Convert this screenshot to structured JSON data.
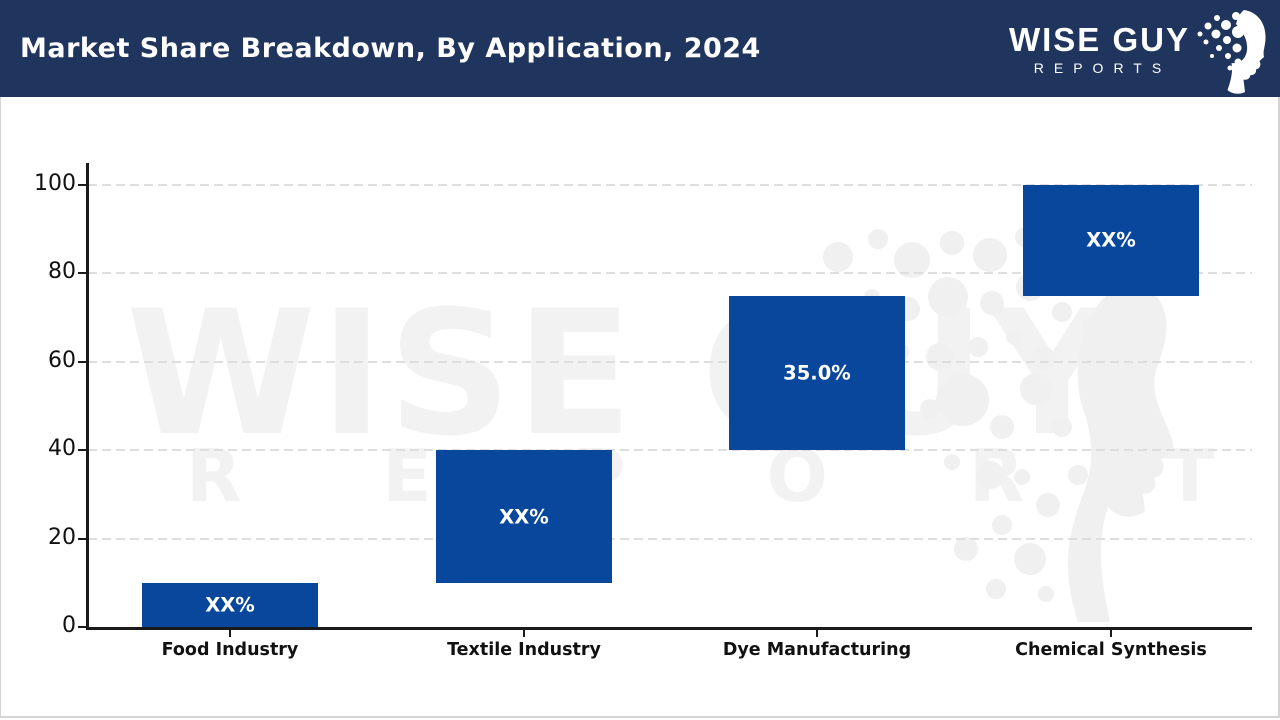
{
  "header": {
    "title": "Market Share Breakdown, By Application, 2024",
    "bg_color": "#1F355E",
    "logo": {
      "line1": "WISE GUY",
      "line2": "REPORTS",
      "head_icon": "dotted-head-profile"
    }
  },
  "watermark": {
    "line1": "WISE GUY",
    "line2": "R E P O R T S"
  },
  "chart_data": {
    "type": "bar",
    "subtype": "floating-segment-bars (stacked waterfall, segments sum to 100%)",
    "title": "Market Share Breakdown, By Application, 2024",
    "categories": [
      "Food Industry",
      "Textile Industry",
      "Dye Manufacturing",
      "Chemical Synthesis"
    ],
    "series": [
      {
        "category": "Food Industry",
        "start": 0,
        "end": 10,
        "span": 10,
        "label": "XX%"
      },
      {
        "category": "Textile Industry",
        "start": 10,
        "end": 40,
        "span": 30,
        "label": "XX%"
      },
      {
        "category": "Dye Manufacturing",
        "start": 40,
        "end": 75,
        "span": 35,
        "label": "35.0%"
      },
      {
        "category": "Chemical Synthesis",
        "start": 75,
        "end": 100,
        "span": 25,
        "label": "XX%"
      }
    ],
    "known_values": {
      "Dye Manufacturing": 35.0
    },
    "yticks": [
      0,
      20,
      40,
      60,
      80,
      100
    ],
    "ylim": [
      0,
      105
    ],
    "xlabel": "",
    "ylabel": "",
    "grid": "horizontal-dashed",
    "legend": "none",
    "bar_color": "#08479B",
    "bar_label_color": "#FFFFFF"
  }
}
